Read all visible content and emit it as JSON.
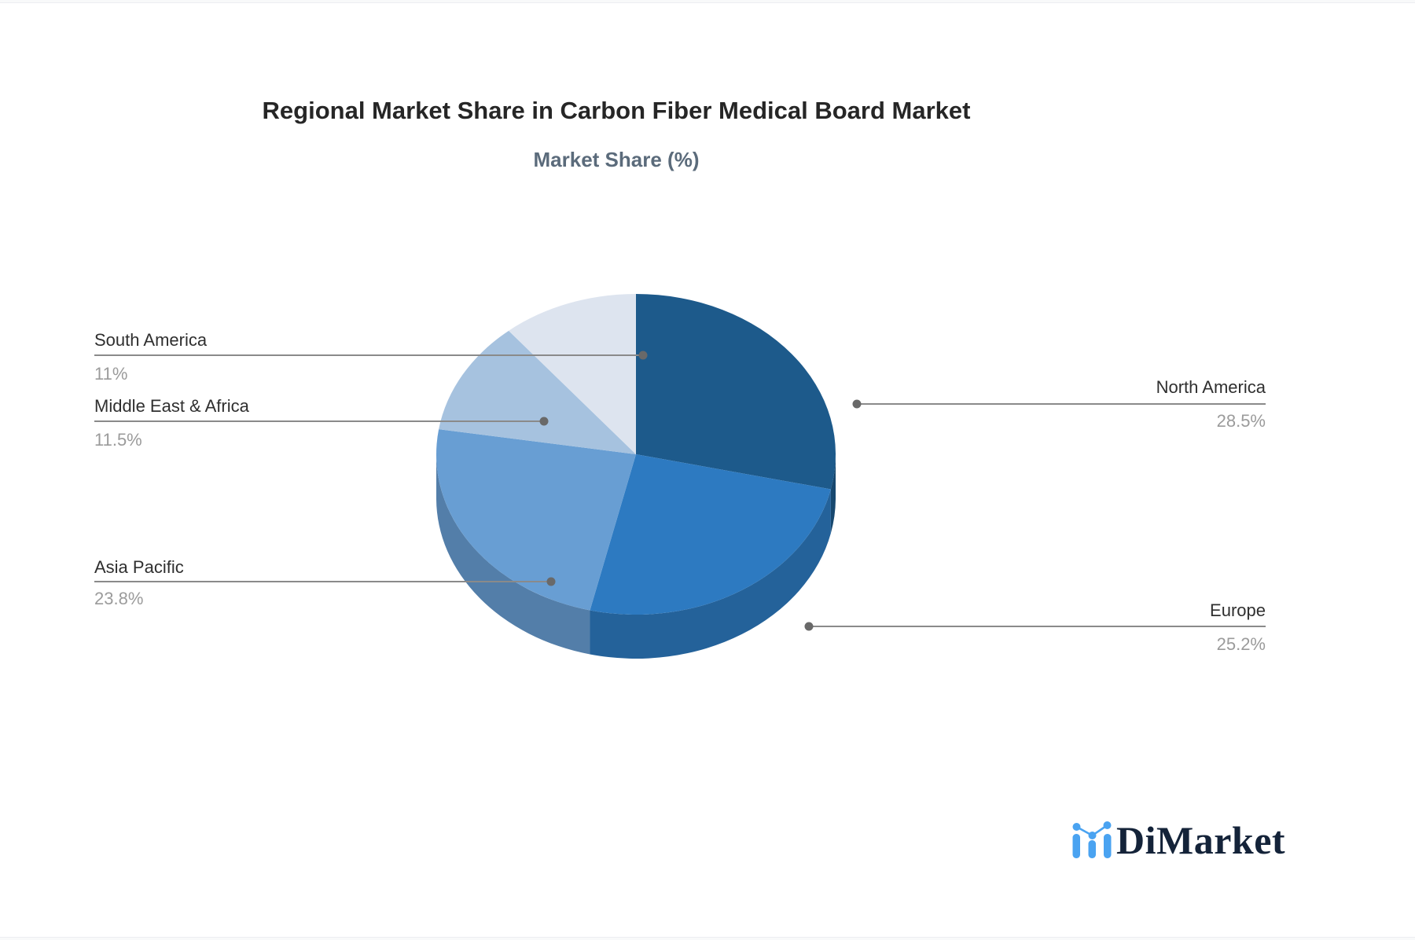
{
  "page": {
    "background": "#ffffff",
    "edge_strip_color": "#f8f9fa"
  },
  "chart_data": {
    "type": "pie",
    "style": "3d",
    "title": "Regional Market Share in Carbon Fiber Medical Board Market",
    "subtitle": "Market Share (%)",
    "unit": "%",
    "start_angle_deg": 0,
    "direction": "clockwise",
    "legend_position": "connector-labels",
    "slices": [
      {
        "label": "North America",
        "value": 28.5,
        "display": "28.5%",
        "color": "#1d5a8b",
        "side": "right"
      },
      {
        "label": "Europe",
        "value": 25.2,
        "display": "25.2%",
        "color": "#2d7ac1",
        "side": "right"
      },
      {
        "label": "Asia Pacific",
        "value": 23.8,
        "display": "23.8%",
        "color": "#689ed3",
        "side": "left"
      },
      {
        "label": "Middle East & Africa",
        "value": 11.5,
        "display": "11.5%",
        "color": "#a6c2df",
        "side": "left"
      },
      {
        "label": "South America",
        "value": 11,
        "display": "11%",
        "color": "#dde4ef",
        "side": "left"
      }
    ],
    "connector": {
      "line_color": "#8a8a8a",
      "dot_color": "#696969"
    },
    "label_text_color": "#2f2f2f",
    "value_text_color": "#9b9b9b"
  },
  "brand": {
    "name": "DiMarket",
    "icon": "bar-line-chart-icon",
    "icon_color": "#4aa3f1",
    "text_color": "#142339"
  }
}
